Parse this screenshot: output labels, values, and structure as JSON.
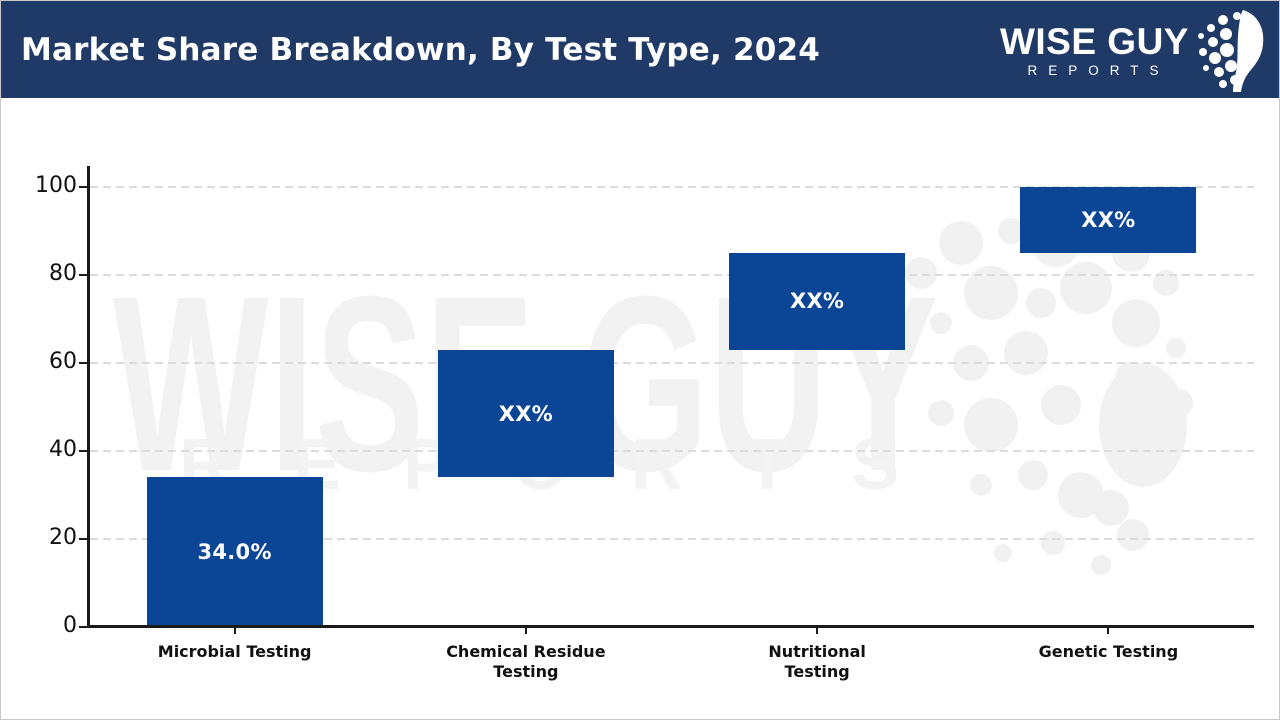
{
  "header": {
    "title": "Market Share Breakdown, By Test Type, 2024",
    "logo_line1": "WISE GUY",
    "logo_line2": "REPORTS",
    "bg_color": "#203a68"
  },
  "watermark": {
    "line1": "WISE GUY",
    "line2": "REPORTS"
  },
  "chart_data": {
    "type": "bar",
    "subtype": "floating-waterfall",
    "title": "Market Share Breakdown, By Test Type, 2024",
    "categories": [
      "Microbial Testing",
      "Chemical Residue Testing",
      "Nutritional Testing",
      "Genetic Testing"
    ],
    "bars": [
      {
        "category": "Microbial Testing",
        "label_lines": [
          "Microbial Testing"
        ],
        "start": 0,
        "end": 34,
        "value_label": "34.0%"
      },
      {
        "category": "Chemical Residue Testing",
        "label_lines": [
          "Chemical Residue",
          "Testing"
        ],
        "start": 34,
        "end": 63,
        "value_label": "XX%"
      },
      {
        "category": "Nutritional Testing",
        "label_lines": [
          "Nutritional",
          "Testing"
        ],
        "start": 63,
        "end": 85,
        "value_label": "XX%"
      },
      {
        "category": "Genetic Testing",
        "label_lines": [
          "Genetic Testing"
        ],
        "start": 85,
        "end": 100,
        "value_label": "XX%"
      }
    ],
    "ylim": [
      0,
      100
    ],
    "yticks": [
      0,
      20,
      40,
      60,
      80,
      100
    ],
    "grid": "horizontal-dashed",
    "legend": "none",
    "colors": {
      "bar": "#0b4596",
      "header_bg": "#203a68",
      "grid": "#dcdcdc",
      "axis": "#1a1a1a",
      "watermark": "#f1f1f1"
    }
  }
}
